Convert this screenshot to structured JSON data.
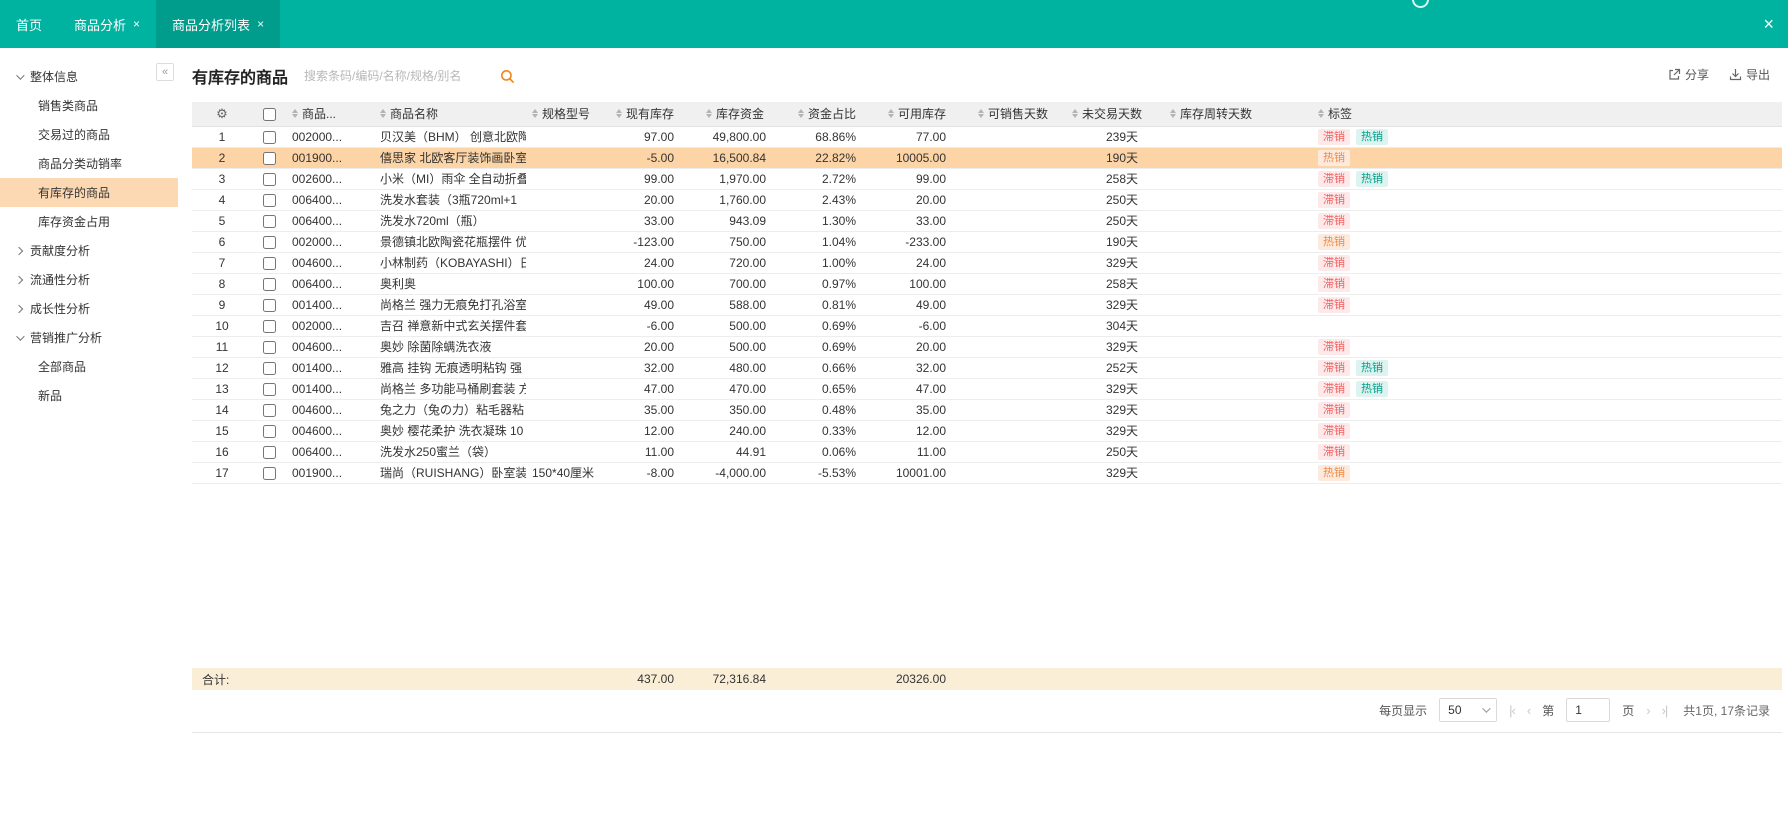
{
  "icons": {
    "close": "×",
    "gear": "⚙",
    "pager_first": "|‹",
    "pager_prev": "‹",
    "pager_next": "›",
    "pager_last": "›|"
  },
  "topbar": {
    "tabs": [
      {
        "label": "首页",
        "closable": false,
        "active": false
      },
      {
        "label": "商品分析",
        "closable": true,
        "active": false
      },
      {
        "label": "商品分析列表",
        "closable": true,
        "active": true
      }
    ],
    "window_close": "×"
  },
  "sidebar": {
    "collapse_icon": "«",
    "tree": [
      {
        "label": "整体信息",
        "expanded": true,
        "children": [
          {
            "label": "销售类商品",
            "active": false
          },
          {
            "label": "交易过的商品",
            "active": false
          },
          {
            "label": "商品分类动销率",
            "active": false
          },
          {
            "label": "有库存的商品",
            "active": true
          },
          {
            "label": "库存资金占用",
            "active": false
          }
        ]
      },
      {
        "label": "贡献度分析",
        "expanded": false,
        "children": []
      },
      {
        "label": "流通性分析",
        "expanded": false,
        "children": []
      },
      {
        "label": "成长性分析",
        "expanded": false,
        "children": []
      },
      {
        "label": "营销推广分析",
        "expanded": true,
        "children": [
          {
            "label": "全部商品",
            "active": false
          },
          {
            "label": "新品",
            "active": false
          }
        ]
      }
    ]
  },
  "header": {
    "title": "有库存的商品",
    "search_placeholder": "搜索条码/编码/名称/规格/别名",
    "share_label": "分享",
    "export_label": "导出"
  },
  "table": {
    "columns": [
      "商品...",
      "商品名称",
      "规格型号",
      "现有库存",
      "库存资金",
      "资金占比",
      "可用库存",
      "可销售天数",
      "未交易天数",
      "库存周转天数",
      "标签"
    ],
    "rows": [
      {
        "num": "1",
        "code": "002000...",
        "name": "贝汉美（BHM） 创意北欧陶瓷",
        "spec": "",
        "stock": "97.00",
        "fund": "49,800.00",
        "ratio": "68.86%",
        "available": "77.00",
        "sell_days": "",
        "idle_days": "239天",
        "turnover_days": "",
        "selected": false,
        "tags": [
          {
            "text": "滞销",
            "type": "red"
          },
          {
            "text": "热销",
            "type": "teal"
          }
        ]
      },
      {
        "num": "2",
        "code": "001900...",
        "name": "僖思家 北欧客厅装饰画卧室",
        "spec": "",
        "stock": "-5.00",
        "fund": "16,500.84",
        "ratio": "22.82%",
        "available": "10005.00",
        "sell_days": "",
        "idle_days": "190天",
        "turnover_days": "",
        "selected": true,
        "tags": [
          {
            "text": "热销",
            "type": "orange"
          }
        ]
      },
      {
        "num": "3",
        "code": "002600...",
        "name": "小米（MI）雨伞 全自动折叠",
        "spec": "",
        "stock": "99.00",
        "fund": "1,970.00",
        "ratio": "2.72%",
        "available": "99.00",
        "sell_days": "",
        "idle_days": "258天",
        "turnover_days": "",
        "selected": false,
        "tags": [
          {
            "text": "滞销",
            "type": "red"
          },
          {
            "text": "热销",
            "type": "teal"
          }
        ]
      },
      {
        "num": "4",
        "code": "006400...",
        "name": "洗发水套装（3瓶720ml+1",
        "spec": "",
        "stock": "20.00",
        "fund": "1,760.00",
        "ratio": "2.43%",
        "available": "20.00",
        "sell_days": "",
        "idle_days": "250天",
        "turnover_days": "",
        "selected": false,
        "tags": [
          {
            "text": "滞销",
            "type": "red"
          }
        ]
      },
      {
        "num": "5",
        "code": "006400...",
        "name": "洗发水720ml（瓶）",
        "spec": "",
        "stock": "33.00",
        "fund": "943.09",
        "ratio": "1.30%",
        "available": "33.00",
        "sell_days": "",
        "idle_days": "250天",
        "turnover_days": "",
        "selected": false,
        "tags": [
          {
            "text": "滞销",
            "type": "red"
          }
        ]
      },
      {
        "num": "6",
        "code": "002000...",
        "name": "景德镇北欧陶瓷花瓶摆件 优",
        "spec": "",
        "stock": "-123.00",
        "fund": "750.00",
        "ratio": "1.04%",
        "available": "-233.00",
        "sell_days": "",
        "idle_days": "190天",
        "turnover_days": "",
        "selected": false,
        "tags": [
          {
            "text": "热销",
            "type": "orange"
          }
        ]
      },
      {
        "num": "7",
        "code": "004600...",
        "name": "小林制药（KOBAYASHI）日",
        "spec": "",
        "stock": "24.00",
        "fund": "720.00",
        "ratio": "1.00%",
        "available": "24.00",
        "sell_days": "",
        "idle_days": "329天",
        "turnover_days": "",
        "selected": false,
        "tags": [
          {
            "text": "滞销",
            "type": "red"
          }
        ]
      },
      {
        "num": "8",
        "code": "006400...",
        "name": "奥利奥",
        "spec": "",
        "stock": "100.00",
        "fund": "700.00",
        "ratio": "0.97%",
        "available": "100.00",
        "sell_days": "",
        "idle_days": "258天",
        "turnover_days": "",
        "selected": false,
        "tags": [
          {
            "text": "滞销",
            "type": "red"
          }
        ]
      },
      {
        "num": "9",
        "code": "001400...",
        "name": "尚格兰 强力无痕免打孔浴室",
        "spec": "",
        "stock": "49.00",
        "fund": "588.00",
        "ratio": "0.81%",
        "available": "49.00",
        "sell_days": "",
        "idle_days": "329天",
        "turnover_days": "",
        "selected": false,
        "tags": [
          {
            "text": "滞销",
            "type": "red"
          }
        ]
      },
      {
        "num": "10",
        "code": "002000...",
        "name": "吉召 禅意新中式玄关摆件套",
        "spec": "",
        "stock": "-6.00",
        "fund": "500.00",
        "ratio": "0.69%",
        "available": "-6.00",
        "sell_days": "",
        "idle_days": "304天",
        "turnover_days": "",
        "selected": false,
        "tags": []
      },
      {
        "num": "11",
        "code": "004600...",
        "name": "奥妙 除菌除螨洗衣液",
        "spec": "",
        "stock": "20.00",
        "fund": "500.00",
        "ratio": "0.69%",
        "available": "20.00",
        "sell_days": "",
        "idle_days": "329天",
        "turnover_days": "",
        "selected": false,
        "tags": [
          {
            "text": "滞销",
            "type": "red"
          }
        ]
      },
      {
        "num": "12",
        "code": "001400...",
        "name": "雅高 挂钩 无痕透明粘钩 强",
        "spec": "",
        "stock": "32.00",
        "fund": "480.00",
        "ratio": "0.66%",
        "available": "32.00",
        "sell_days": "",
        "idle_days": "252天",
        "turnover_days": "",
        "selected": false,
        "tags": [
          {
            "text": "滞销",
            "type": "red"
          },
          {
            "text": "热销",
            "type": "teal"
          }
        ]
      },
      {
        "num": "13",
        "code": "001400...",
        "name": "尚格兰 多功能马桶刷套装 方",
        "spec": "",
        "stock": "47.00",
        "fund": "470.00",
        "ratio": "0.65%",
        "available": "47.00",
        "sell_days": "",
        "idle_days": "329天",
        "turnover_days": "",
        "selected": false,
        "tags": [
          {
            "text": "滞销",
            "type": "red"
          },
          {
            "text": "热销",
            "type": "teal"
          }
        ]
      },
      {
        "num": "14",
        "code": "004600...",
        "name": "兔之力（兔の力）粘毛器粘",
        "spec": "",
        "stock": "35.00",
        "fund": "350.00",
        "ratio": "0.48%",
        "available": "35.00",
        "sell_days": "",
        "idle_days": "329天",
        "turnover_days": "",
        "selected": false,
        "tags": [
          {
            "text": "滞销",
            "type": "red"
          }
        ]
      },
      {
        "num": "15",
        "code": "004600...",
        "name": "奥妙 樱花柔护 洗衣凝珠 10",
        "spec": "",
        "stock": "12.00",
        "fund": "240.00",
        "ratio": "0.33%",
        "available": "12.00",
        "sell_days": "",
        "idle_days": "329天",
        "turnover_days": "",
        "selected": false,
        "tags": [
          {
            "text": "滞销",
            "type": "red"
          }
        ]
      },
      {
        "num": "16",
        "code": "006400...",
        "name": "洗发水250蜜兰（袋）",
        "spec": "",
        "stock": "11.00",
        "fund": "44.91",
        "ratio": "0.06%",
        "available": "11.00",
        "sell_days": "",
        "idle_days": "250天",
        "turnover_days": "",
        "selected": false,
        "tags": [
          {
            "text": "滞销",
            "type": "red"
          }
        ]
      },
      {
        "num": "17",
        "code": "001900...",
        "name": "瑞尚（RUISHANG）卧室装",
        "spec": "150*40厘米",
        "stock": "-8.00",
        "fund": "-4,000.00",
        "ratio": "-5.53%",
        "available": "10001.00",
        "sell_days": "",
        "idle_days": "329天",
        "turnover_days": "",
        "selected": false,
        "tags": [
          {
            "text": "热销",
            "type": "orange"
          }
        ]
      }
    ],
    "summary": {
      "label": "合计:",
      "stock": "437.00",
      "fund": "72,316.84",
      "ratio": "",
      "available": "20326.00"
    }
  },
  "pagination": {
    "per_page_label": "每页显示",
    "per_page_value": "50",
    "page_word_before": "第",
    "current_page": "1",
    "page_word_after": "页",
    "summary": "共1页, 17条记录"
  }
}
